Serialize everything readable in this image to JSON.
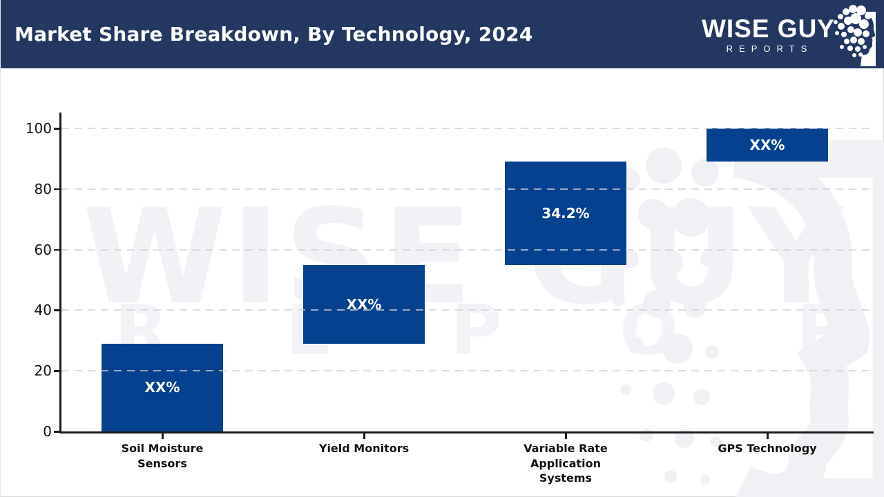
{
  "header": {
    "title": "Market Share Breakdown, By Technology, 2024",
    "logo_line1": "WISE GUY",
    "logo_line2": "REPORTS",
    "bg_color": "#223862"
  },
  "watermark": {
    "line1": "WISE GUY",
    "line2": "R E P O R T S"
  },
  "icons": {
    "logo_face": "dotted-head-profile",
    "watermark_face": "dotted-head-profile"
  },
  "chart_data": {
    "type": "bar",
    "subtype": "waterfall-stacked-segments",
    "title": "Market Share Breakdown, By Technology, 2024",
    "categories": [
      "Soil Moisture Sensors",
      "Yield Monitors",
      "Variable Rate Application Systems",
      "GPS Technology"
    ],
    "segments": [
      {
        "category": "Soil Moisture Sensors",
        "start": 0,
        "end": 29,
        "label": "XX%"
      },
      {
        "category": "Yield Monitors",
        "start": 29,
        "end": 54.8,
        "label": "XX%"
      },
      {
        "category": "Variable Rate Application Systems",
        "start": 54.8,
        "end": 89,
        "label": "34.2%"
      },
      {
        "category": "GPS Technology",
        "start": 89,
        "end": 100,
        "label": "XX%"
      }
    ],
    "ylim": [
      0,
      100
    ],
    "yticks": [
      0,
      20,
      40,
      60,
      80,
      100
    ],
    "grid": "horizontal-dashed",
    "legend": "none",
    "bar_color": "#04418f",
    "bar_label_color": "#ffffff"
  }
}
